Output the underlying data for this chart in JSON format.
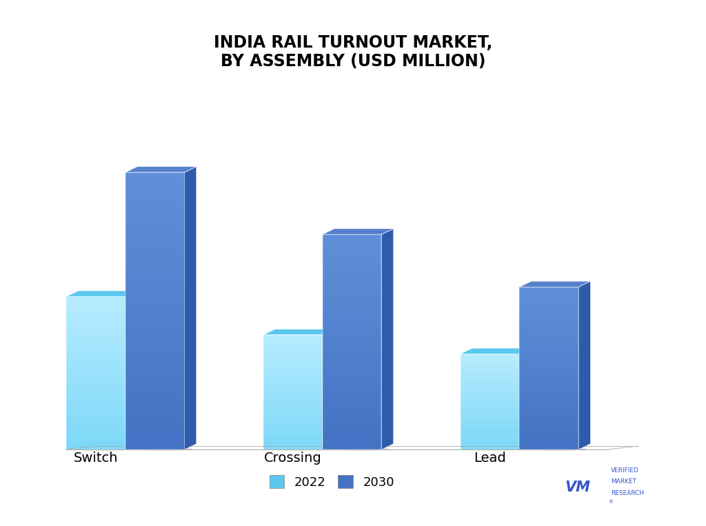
{
  "title": "INDIA RAIL TURNOUT MARKET,\nBY ASSEMBLY (USD MILLION)",
  "categories": [
    "Switch",
    "Crossing",
    "Lead"
  ],
  "values_2022": [
    3.2,
    2.4,
    2.0
  ],
  "values_2030": [
    5.8,
    4.5,
    3.4
  ],
  "color_2022_bottom": "#7DD8F8",
  "color_2022_top_face": "#5BC8F0",
  "color_2022_side": "#4AACCC",
  "color_2030_front": "#4472C4",
  "color_2030_top_face": "#5580CC",
  "color_2030_side": "#2E5BAA",
  "background_color": "#FFFFFF",
  "legend_2022": "2022",
  "legend_2030": "2030",
  "legend_color_2022": "#5BC8F0",
  "legend_color_2030": "#4472C4",
  "title_fontsize": 17,
  "label_fontsize": 14,
  "legend_fontsize": 13
}
